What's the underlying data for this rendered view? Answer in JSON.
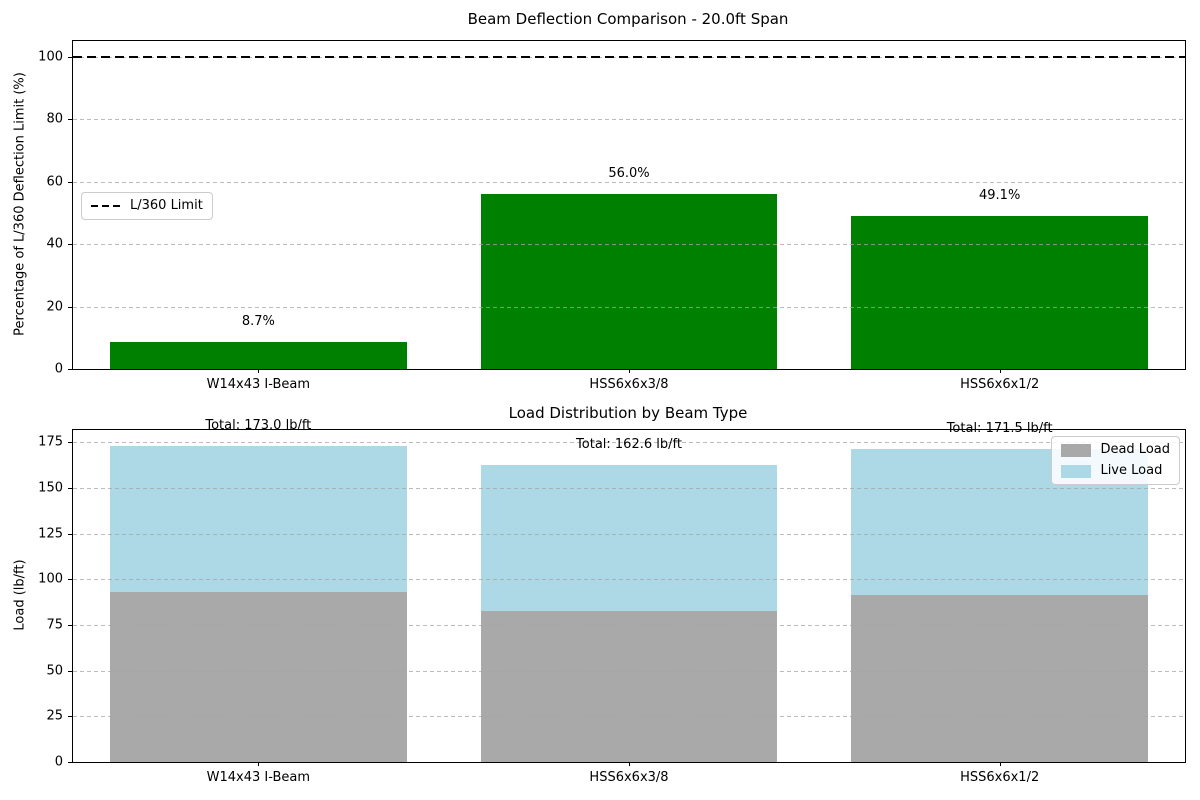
{
  "figure": {
    "background": "#ffffff"
  },
  "chart_data": [
    {
      "type": "bar",
      "title": "Beam Deflection Comparison - 20.0ft Span",
      "ylabel": "Percentage of L/360 Deflection Limit (%)",
      "xlabel": "",
      "categories": [
        "W14x43 I-Beam",
        "HSS6x6x3/8",
        "HSS6x6x1/2"
      ],
      "values": [
        8.7,
        56.0,
        49.1
      ],
      "value_labels": [
        "8.7%",
        "56.0%",
        "49.1%"
      ],
      "bar_color": "#008000",
      "yticks": [
        0,
        20,
        40,
        60,
        80,
        100
      ],
      "ylim": [
        0,
        105
      ],
      "grid": "horizontal-dashed",
      "reference_line": {
        "value": 100,
        "style": "dashed",
        "color": "#000000",
        "label": "L/360 Limit"
      },
      "legend": {
        "position": "center-left",
        "entries": [
          {
            "label": "L/360 Limit",
            "marker": "dashed-line",
            "color": "#000000"
          }
        ]
      }
    },
    {
      "type": "stacked-bar",
      "title": "Load Distribution by Beam Type",
      "ylabel": "Load (lb/ft)",
      "xlabel": "",
      "categories": [
        "W14x43 I-Beam",
        "HSS6x6x3/8",
        "HSS6x6x1/2"
      ],
      "series": [
        {
          "name": "Dead Load",
          "color": "#a9a9a9",
          "values": [
            93.0,
            82.6,
            91.5
          ]
        },
        {
          "name": "Live Load",
          "color": "#add8e6",
          "values": [
            80.0,
            80.0,
            80.0
          ]
        }
      ],
      "totals": [
        173.0,
        162.6,
        171.5
      ],
      "total_labels": [
        "Total: 173.0 lb/ft",
        "Total: 162.6 lb/ft",
        "Total: 171.5 lb/ft"
      ],
      "yticks": [
        0,
        25,
        50,
        75,
        100,
        125,
        150,
        175
      ],
      "ylim": [
        0,
        181.65
      ],
      "grid": "horizontal-dashed",
      "legend": {
        "position": "upper-right",
        "entries": [
          {
            "label": "Dead Load",
            "marker": "rect",
            "color": "#a9a9a9"
          },
          {
            "label": "Live Load",
            "marker": "rect",
            "color": "#add8e6"
          }
        ]
      }
    }
  ]
}
